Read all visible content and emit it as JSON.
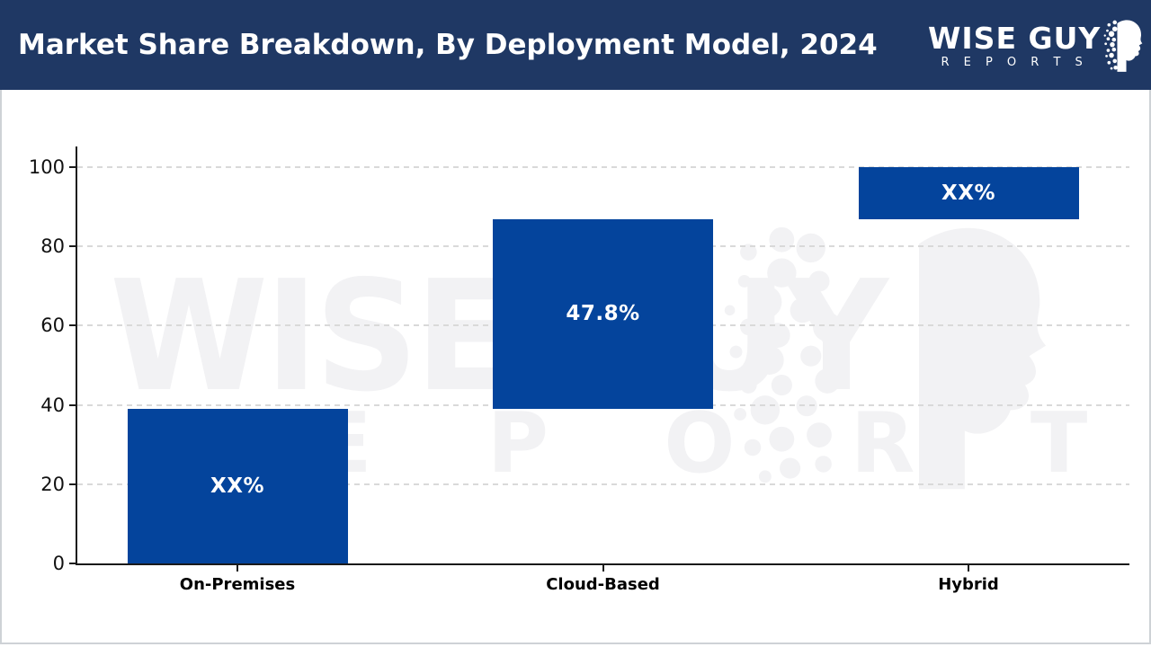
{
  "header": {
    "title": "Market Share Breakdown, By Deployment Model, 2024",
    "logo": {
      "line1": "WISE GUY",
      "line2": "R E P O R T S"
    }
  },
  "watermark": {
    "line1": "WISE GUY",
    "line2": "R E P O R T S"
  },
  "chart_data": {
    "type": "bar",
    "subtype": "floating-waterfall-segments",
    "title": "Market Share Breakdown, By Deployment Model, 2024",
    "categories": [
      "On-Premises",
      "Cloud-Based",
      "Hybrid"
    ],
    "bars": [
      {
        "category": "On-Premises",
        "start": 0,
        "end": 39,
        "label": "XX%"
      },
      {
        "category": "Cloud-Based",
        "start": 39,
        "end": 86.8,
        "label": "47.8%"
      },
      {
        "category": "Hybrid",
        "start": 86.8,
        "end": 100,
        "label": "XX%"
      }
    ],
    "xlabel": "",
    "ylabel": "",
    "ylim": [
      0,
      100
    ],
    "yticks": [
      0,
      20,
      40,
      60,
      80,
      100
    ],
    "grid": "horizontal-dashed",
    "legend": "none"
  },
  "colors": {
    "header_bg": "#1f3864",
    "bar": "#04449c",
    "grid": "#d9d9d9",
    "axis": "#1a1a1a",
    "watermark": "#f2f2f4",
    "frame": "#ced2d6",
    "title_text": "#ffffff",
    "bar_label_text": "#ffffff"
  }
}
